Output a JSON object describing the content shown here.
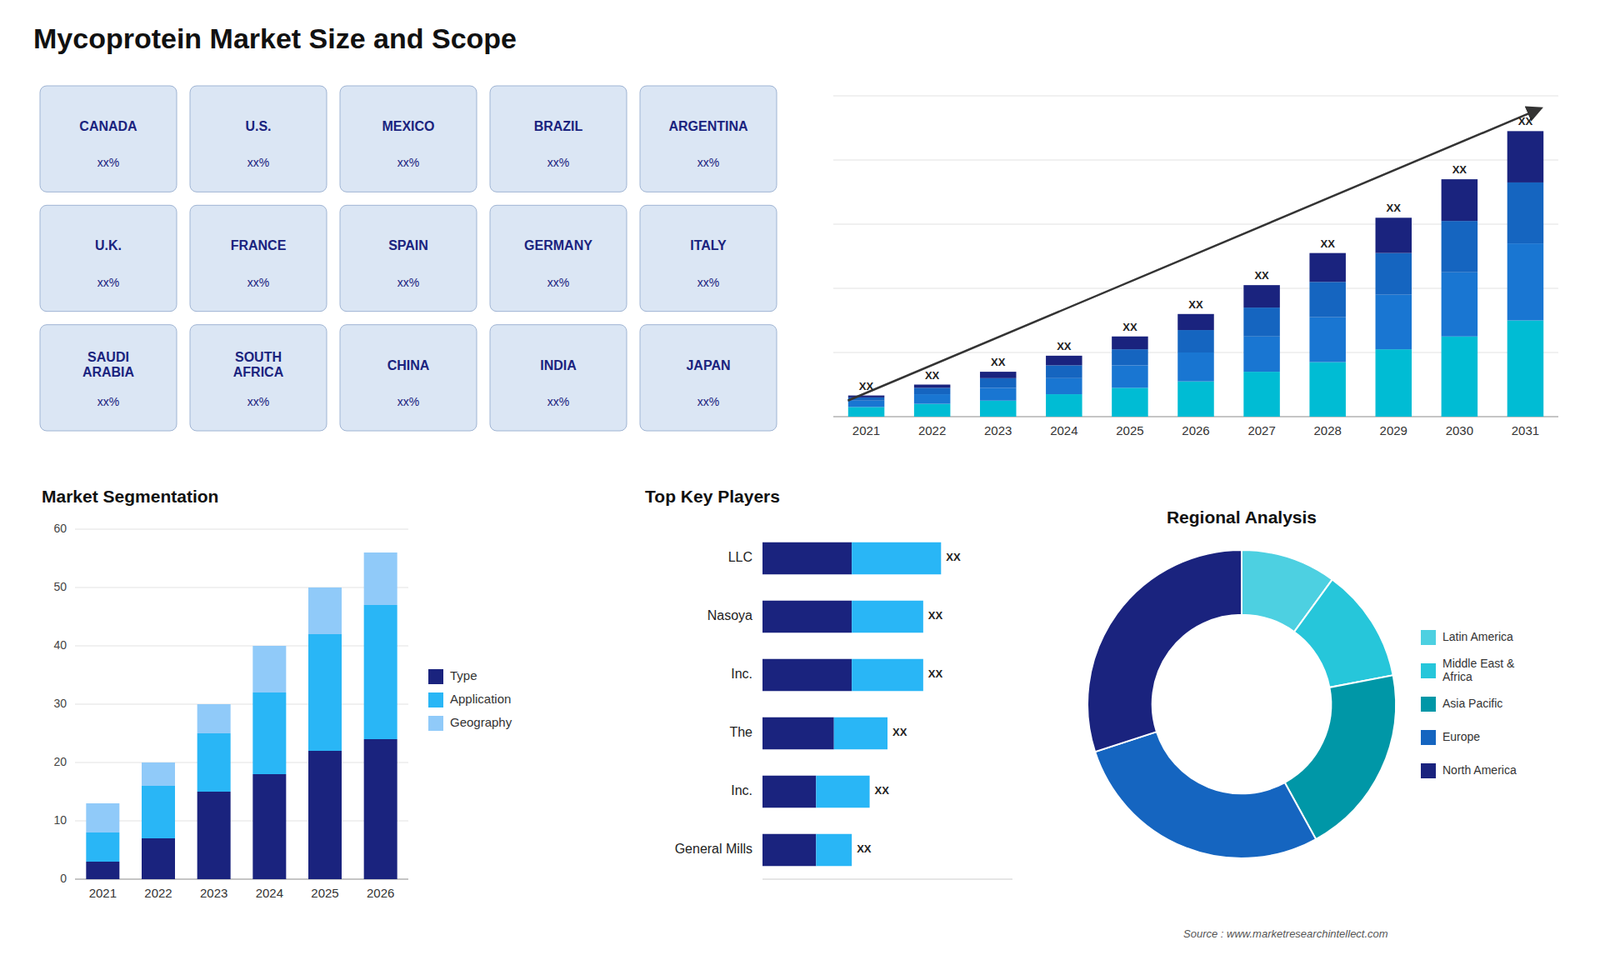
{
  "title": "Mycoprotein Market Size and Scope",
  "annotations": [
    "Source : www.marketresearchintellect.com"
  ],
  "chart_data": [
    {
      "type": "map",
      "categories": [
        "CANADA",
        "U.S.",
        "MEXICO",
        "BRAZIL",
        "ARGENTINA",
        "U.K.",
        "FRANCE",
        "SPAIN",
        "GERMANY",
        "ITALY",
        "SAUDI\nARABIA",
        "SOUTH\nAFRICA",
        "CHINA",
        "INDIA",
        "JAPAN"
      ],
      "annotations": [
        "xx%",
        "xx%",
        "xx%",
        "xx%",
        "xx%",
        "xx%",
        "xx%",
        "xx%",
        "xx%",
        "xx%",
        "xx%",
        "xx%",
        "xx%",
        "xx%",
        "xx%"
      ]
    },
    {
      "type": "bar",
      "stacked": true,
      "categories": [
        "2021",
        "2022",
        "2023",
        "2024",
        "2025",
        "2026",
        "2027",
        "2028",
        "2029",
        "2030",
        "2031"
      ],
      "series": [
        {
          "color": "#00bcd4",
          "values": [
            1.5,
            2.0,
            2.5,
            3.5,
            4.5,
            5.5,
            7.0,
            8.5,
            10.5,
            12.5,
            15.0
          ]
        },
        {
          "color": "#1976d2",
          "values": [
            1.0,
            1.5,
            2.0,
            2.5,
            3.5,
            4.5,
            5.5,
            7.0,
            8.5,
            10.0,
            12.0
          ]
        },
        {
          "color": "#1565c0",
          "values": [
            0.5,
            1.0,
            1.5,
            2.0,
            2.5,
            3.5,
            4.5,
            5.5,
            6.5,
            8.0,
            9.5
          ]
        },
        {
          "color": "#1a237e",
          "values": [
            0.3,
            0.5,
            1.0,
            1.5,
            2.0,
            2.5,
            3.5,
            4.5,
            5.5,
            6.5,
            8.0
          ]
        }
      ],
      "ylim": [
        0,
        50
      ],
      "yticks": [
        0,
        10,
        20,
        30,
        40,
        50
      ],
      "grid": true,
      "tick_labels": "x",
      "annotations": [
        "XX",
        "XX",
        "XX",
        "XX",
        "XX",
        "XX",
        "XX",
        "XX",
        "XX",
        "XX",
        "XX"
      ]
    },
    {
      "type": "bar",
      "title": "Market Segmentation",
      "stacked": true,
      "categories": [
        "2021",
        "2022",
        "2023",
        "2024",
        "2025",
        "2026"
      ],
      "series": [
        {
          "name": "Type",
          "color": "#1a237e",
          "values": [
            3,
            7,
            15,
            18,
            22,
            24
          ]
        },
        {
          "name": "Application",
          "color": "#29b6f6",
          "values": [
            5,
            9,
            10,
            14,
            20,
            23
          ]
        },
        {
          "name": "Geography",
          "color": "#90caf9",
          "values": [
            5,
            4,
            5,
            8,
            8,
            9
          ]
        }
      ],
      "ylim": [
        0,
        60
      ],
      "yticks": [
        0,
        10,
        20,
        30,
        40,
        50,
        60
      ],
      "grid": true,
      "legend": "right"
    },
    {
      "type": "bar",
      "title": "Top Key Players",
      "orientation": "horizontal",
      "stacked": true,
      "categories": [
        "LLC",
        "Nasoya",
        "Inc.",
        "The",
        "Inc.",
        "General Mills"
      ],
      "series": [
        {
          "color": "#1a237e",
          "values": [
            5,
            5,
            5,
            4,
            3,
            3
          ]
        },
        {
          "color": "#29b6f6",
          "values": [
            5,
            4,
            4,
            3,
            3,
            2
          ]
        }
      ],
      "xlim": [
        0,
        14
      ],
      "tick_labels": "y",
      "annotations": [
        "XX",
        "XX",
        "XX",
        "XX",
        "XX",
        "XX"
      ]
    },
    {
      "type": "donut",
      "title": "Regional Analysis",
      "categories": [
        "Latin America",
        "Middle East &\nAfrica",
        "Asia Pacific",
        "Europe",
        "North America"
      ],
      "values": [
        10,
        12,
        20,
        28,
        30
      ],
      "colors": [
        "#4dd0e1",
        "#26c6da",
        "#0097a7",
        "#1565c0",
        "#1a237e"
      ],
      "legend": "right"
    }
  ]
}
